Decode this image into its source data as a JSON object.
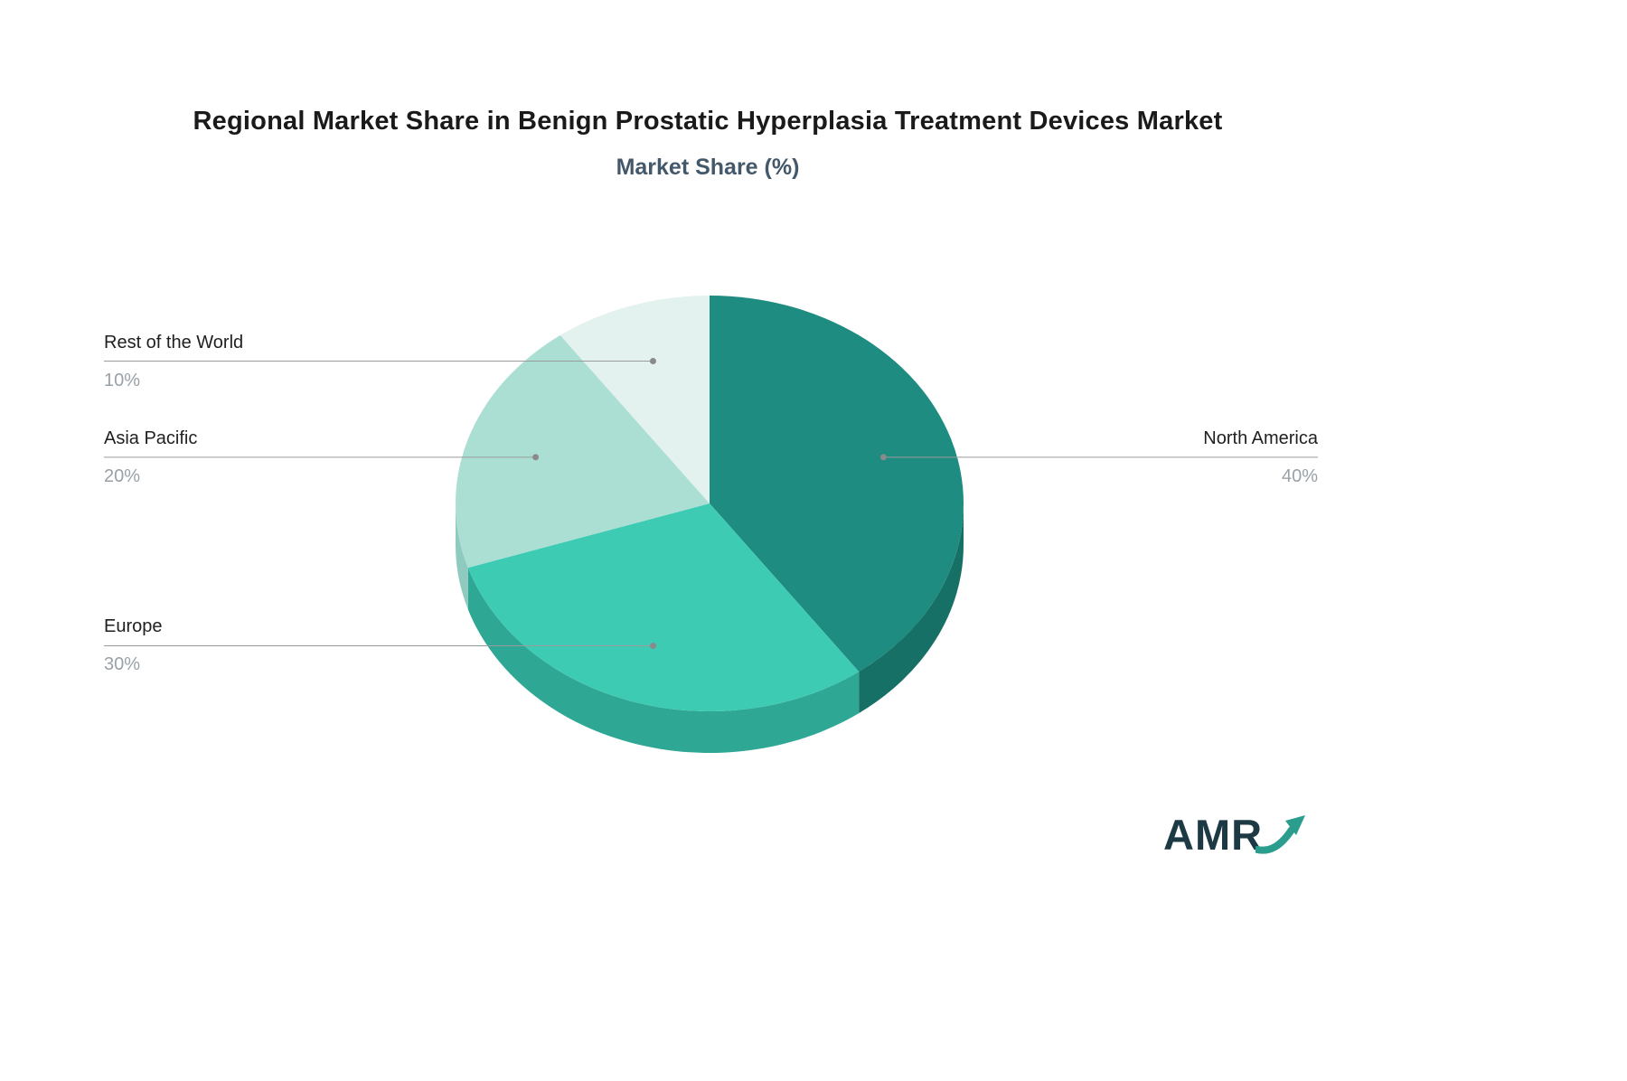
{
  "title": "Regional Market Share in Benign Prostatic Hyperplasia Treatment Devices Market",
  "subtitle": "Market Share (%)",
  "logo": {
    "text": "AMR"
  },
  "chart_data": {
    "type": "pie",
    "title": "Regional Market Share in Benign Prostatic Hyperplasia Treatment Devices Market",
    "subtitle": "Market Share (%)",
    "unit": "%",
    "labels": [
      "North America",
      "Europe",
      "Asia Pacific",
      "Rest of the World"
    ],
    "values": [
      40,
      30,
      20,
      10
    ],
    "value_labels": [
      "40%",
      "30%",
      "20%",
      "10%"
    ],
    "colors": [
      "#1f8c81",
      "#3ecbb4",
      "#abdfd4",
      "#e3f2ee"
    ],
    "side_colors": [
      "#177065",
      "#2ea795",
      "#8fcabf",
      "#c4e2db"
    ],
    "start_angle_deg": 0,
    "direction": "clockwise",
    "style": "3d",
    "legend_position": "none",
    "labels_layout": "leader-lines"
  }
}
